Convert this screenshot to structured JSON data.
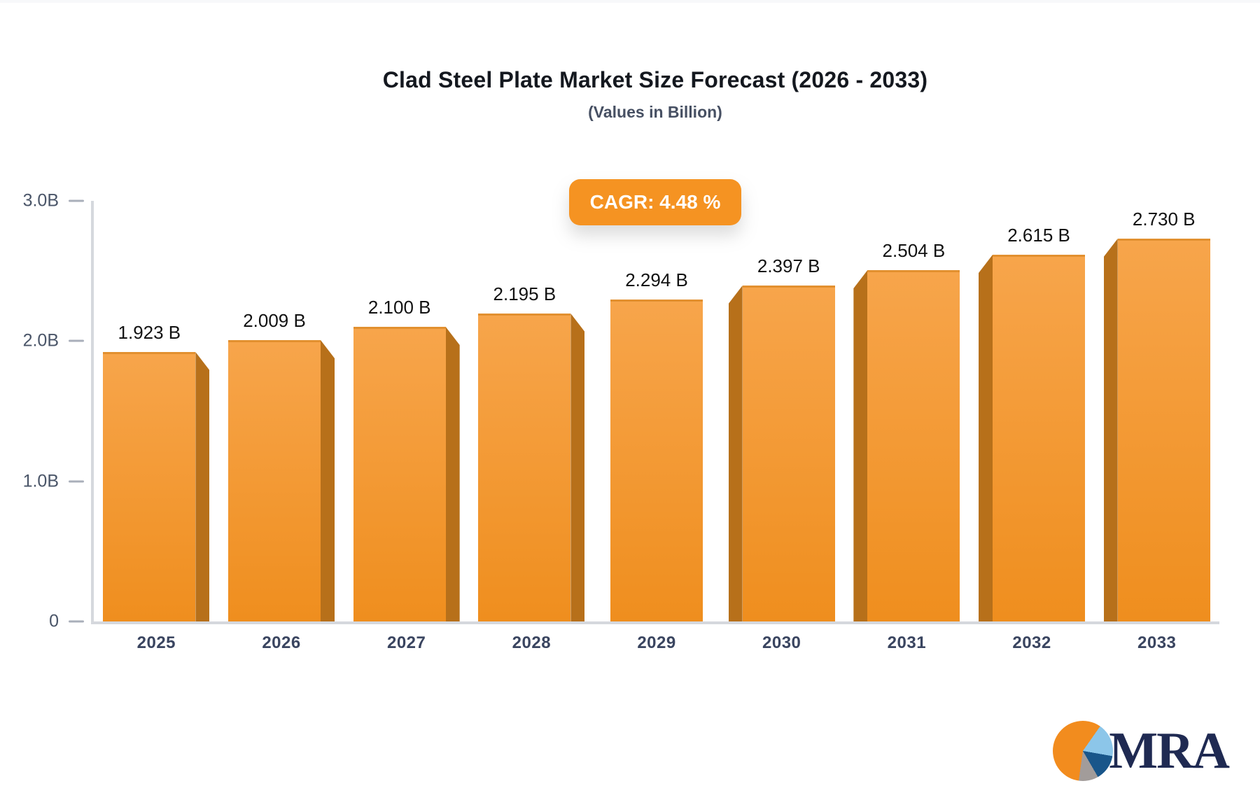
{
  "title": "Clad Steel Plate Market Size Forecast (2026 - 2033)",
  "subtitle": "(Values in Billion)",
  "badge": {
    "label": "CAGR: 4.48 %"
  },
  "chart_data": {
    "type": "bar",
    "title": "Clad Steel Plate Market Size Forecast (2026 - 2033)",
    "subtitle": "(Values in Billion)",
    "annotation": "CAGR: 4.48 %",
    "categories": [
      "2025",
      "2026",
      "2027",
      "2028",
      "2029",
      "2030",
      "2031",
      "2032",
      "2033"
    ],
    "values": [
      1.923,
      2.009,
      2.1,
      2.195,
      2.294,
      2.397,
      2.504,
      2.615,
      2.73
    ],
    "bar_labels": [
      "1.923 B",
      "2.009 B",
      "2.100 B",
      "2.195 B",
      "2.294 B",
      "2.397 B",
      "2.504 B",
      "2.615 B",
      "2.730 B"
    ],
    "xlabel": "",
    "ylabel": "",
    "ylim": [
      0,
      3.0
    ],
    "yticks": [
      {
        "label": "3.0B",
        "value": 3.0
      },
      {
        "label": "2.0B",
        "value": 2.0
      },
      {
        "label": "1.0B",
        "value": 1.0
      },
      {
        "label": "0",
        "value": 0.0
      }
    ],
    "grid": false,
    "legend": false,
    "bar_style": "3d-beveled, bevels face chart center, flat center bar",
    "colors": {
      "bar_top": "#f7a54b",
      "bar_bottom": "#ef8e1e",
      "bar_top_edge": "#e2902f",
      "bar_bevel": "#b7701a",
      "axis": "#d5d8dd",
      "tick_dash": "#a9afba",
      "tick_text": "#4a5568",
      "x_text": "#3a4560",
      "value_text": "#121212",
      "badge_bg": "#f59322",
      "badge_text": "#ffffff"
    }
  },
  "logo": {
    "text": "MRA",
    "text_color": "#1f2a52",
    "pie_icon": "pie-chart-icon",
    "pie_colors": {
      "orange": "#f28c1e",
      "light_blue": "#8cc6e9",
      "navy": "#19568a",
      "gray": "#a29c9a"
    }
  }
}
